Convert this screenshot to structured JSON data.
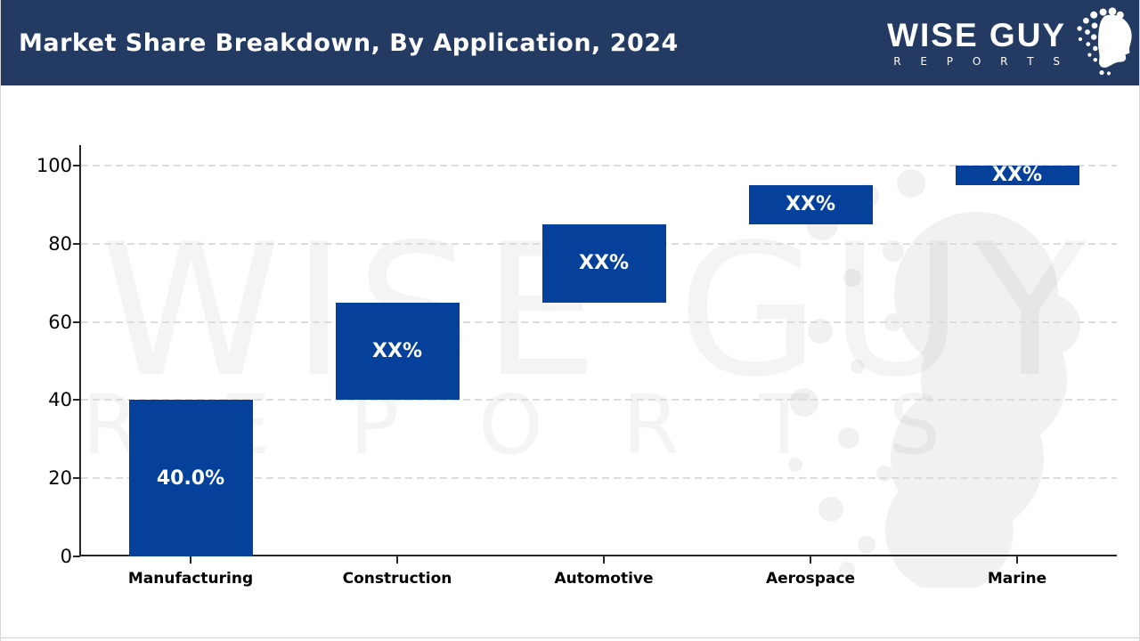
{
  "header": {
    "title": "Market Share Breakdown, By Application, 2024",
    "logo": {
      "line1": "WISE GUY",
      "line2": "R E P O R T S"
    }
  },
  "watermark": {
    "line1": "WISE GUY",
    "line2": "R E P O R T S"
  },
  "chart_data": {
    "type": "bar",
    "subtype": "waterfall",
    "title": "Market Share Breakdown, By Application, 2024",
    "xlabel": "",
    "ylabel": "",
    "categories": [
      "Manufacturing",
      "Construction",
      "Automotive",
      "Aerospace",
      "Marine"
    ],
    "segments": [
      {
        "category": "Manufacturing",
        "start": 0,
        "end": 40,
        "value": 40,
        "label": "40.0%"
      },
      {
        "category": "Construction",
        "start": 40,
        "end": 65,
        "value": 25,
        "label": "XX%"
      },
      {
        "category": "Automotive",
        "start": 65,
        "end": 85,
        "value": 20,
        "label": "XX%"
      },
      {
        "category": "Aerospace",
        "start": 85,
        "end": 95,
        "value": 10,
        "label": "XX%"
      },
      {
        "category": "Marine",
        "start": 95,
        "end": 100,
        "value": 5,
        "label": "XX%"
      }
    ],
    "ylim": [
      0,
      105
    ],
    "yticks": [
      0,
      20,
      40,
      60,
      80,
      100
    ],
    "grid": "horizontal-dashed",
    "legend": "none",
    "bar_color": "#05409a",
    "bar_label_color": "#ffffff"
  },
  "colors": {
    "header_bg": "#233a63",
    "bar": "#05409a",
    "grid": "#dcdcdc",
    "axis": "#262626"
  }
}
